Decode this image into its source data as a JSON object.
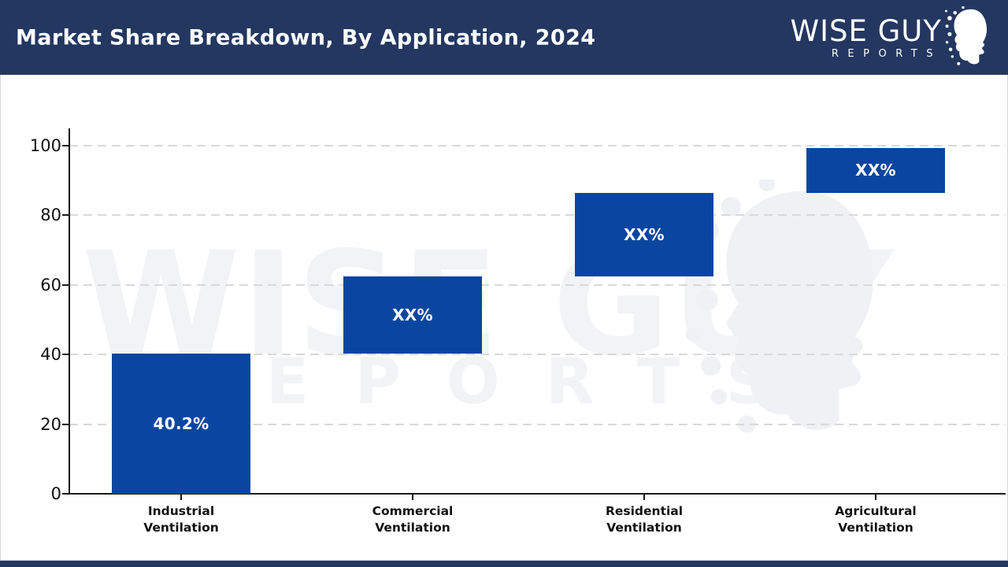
{
  "header": {
    "logo": {
      "line1": "WISE GUY",
      "line2": "REPORTS"
    }
  },
  "watermark": {
    "line1": "WISE GUY",
    "line2": "REPORTS"
  },
  "colors": {
    "header_bg": "#233760",
    "bar": "#0a46a0",
    "grid": "#d9d9d9",
    "axis": "#1a1a1a",
    "watermark": "#f2f3f5",
    "bar_label": "#ffffff"
  },
  "chart_data": {
    "type": "bar",
    "subtype": "waterfall",
    "title": "Market Share Breakdown, By Application, 2024",
    "categories": [
      "Industrial\nVentilation",
      "Commercial\nVentilation",
      "Residential\nVentilation",
      "Agricultural\nVentilation"
    ],
    "segments": [
      {
        "start": 0,
        "end": 40.2,
        "label": "40.2%"
      },
      {
        "start": 40.2,
        "end": 62.5,
        "label": "XX%"
      },
      {
        "start": 62.5,
        "end": 86.5,
        "label": "XX%"
      },
      {
        "start": 86.5,
        "end": 99.4,
        "label": "XX%"
      }
    ],
    "ylabel": "",
    "xlabel": "",
    "yticks": [
      0,
      20,
      40,
      60,
      80,
      100
    ],
    "ylim": [
      0,
      105
    ],
    "grid": "dashed-horizontal",
    "legend": false
  }
}
